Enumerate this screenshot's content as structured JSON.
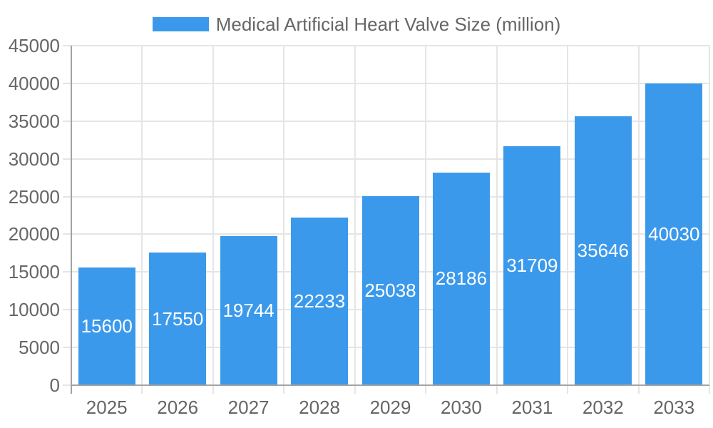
{
  "legend": {
    "label": "Medical Artificial Heart Valve Size (million)"
  },
  "chart_data": {
    "type": "bar",
    "title": "Medical Artificial Heart Valve Size (million)",
    "categories": [
      "2025",
      "2026",
      "2027",
      "2028",
      "2029",
      "2030",
      "2031",
      "2032",
      "2033"
    ],
    "values": [
      15600,
      17550,
      19744,
      22233,
      25038,
      28186,
      31709,
      35646,
      40030
    ],
    "xlabel": "",
    "ylabel": "",
    "ylim": [
      0,
      45000
    ],
    "ytick_step": 5000,
    "ytick_labels": [
      "0",
      "5000",
      "10000",
      "15000",
      "20000",
      "25000",
      "30000",
      "35000",
      "40000",
      "45000"
    ],
    "grid": true,
    "legend_position": "top",
    "value_labels": "inside-center",
    "colors": {
      "bar": "#3B99EC",
      "grid": "#E5E5E5",
      "axis": "#A3A3A3",
      "tick_text": "#666666",
      "legend_text": "#666666",
      "value_label_text": "#ffffff"
    }
  }
}
